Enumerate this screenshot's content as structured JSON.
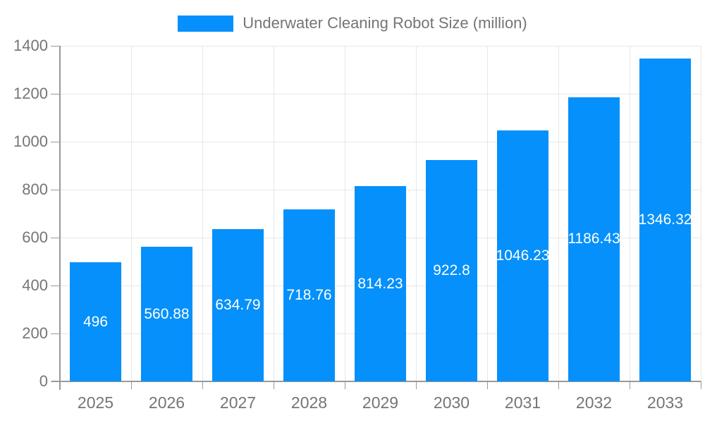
{
  "chart_data": {
    "type": "bar",
    "title": "Underwater Cleaning Robot Size (million)",
    "categories": [
      "2025",
      "2026",
      "2027",
      "2028",
      "2029",
      "2030",
      "2031",
      "2032",
      "2033"
    ],
    "values": [
      496,
      560.88,
      634.79,
      718.76,
      814.23,
      922.8,
      1046.23,
      1186.43,
      1346.32
    ],
    "value_labels": [
      "496",
      "560.88",
      "634.79",
      "718.76",
      "814.23",
      "922.8",
      "1046.23",
      "1186.43",
      "1346.32"
    ],
    "xlabel": "",
    "ylabel": "",
    "ylim": [
      0,
      1400
    ],
    "ytick_step": 200,
    "ytick_labels": [
      "0",
      "200",
      "400",
      "600",
      "800",
      "1000",
      "1200",
      "1400"
    ],
    "grid": true,
    "legend_position": "top",
    "colors": {
      "bar": "#0590fb",
      "grid": "#e7e7e7",
      "axis": "#999999",
      "text": "#757575",
      "value_label": "#ffffff",
      "background": "#ffffff"
    }
  }
}
